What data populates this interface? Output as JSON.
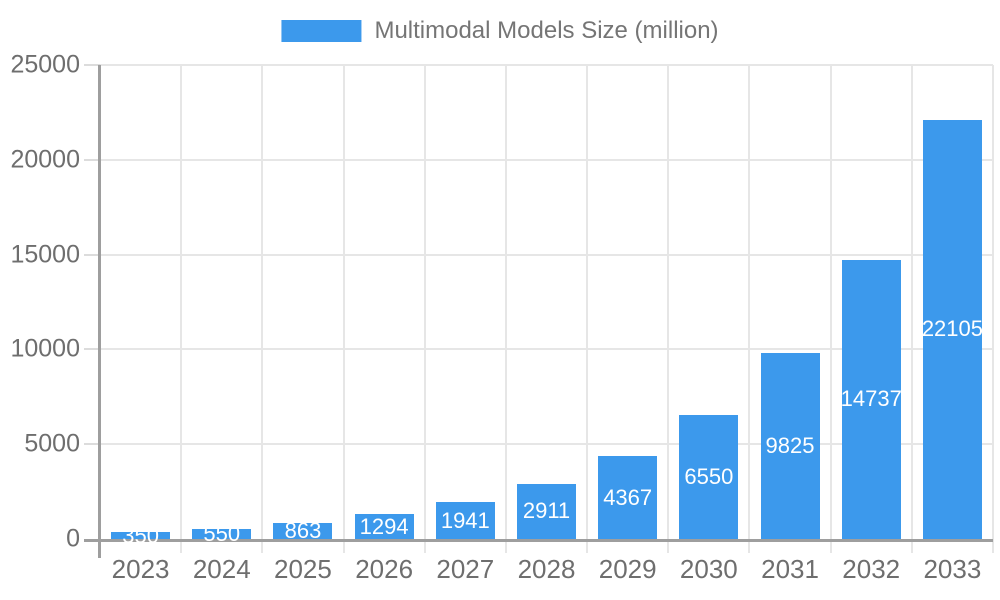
{
  "chart_data": {
    "type": "bar",
    "title": "Multimodal Models Size (million)",
    "legend": {
      "position": "top",
      "label": "Multimodal Models Size (million)"
    },
    "categories": [
      "2023",
      "2024",
      "2025",
      "2026",
      "2027",
      "2028",
      "2029",
      "2030",
      "2031",
      "2032",
      "2033"
    ],
    "series": [
      {
        "name": "Multimodal Models Size (million)",
        "values": [
          350,
          550,
          863,
          1294,
          1941,
          2911,
          4367,
          6550,
          9825,
          14737,
          22105
        ]
      }
    ],
    "data_labels_shown": true,
    "xlabel": "",
    "ylabel": "",
    "ylim": [
      0,
      25000
    ],
    "ytick_step": 5000,
    "ytick_labels": [
      "0",
      "5000",
      "10000",
      "15000",
      "20000",
      "25000"
    ],
    "grid": true,
    "colors": {
      "bar": "#3c99ec",
      "bar_value_text": "#ffffff",
      "axis_line": "#9e9e9e",
      "gridline": "#e6e6e6",
      "tick_text": "#6e6e6e",
      "legend_text": "#757575",
      "background": "#ffffff"
    }
  }
}
